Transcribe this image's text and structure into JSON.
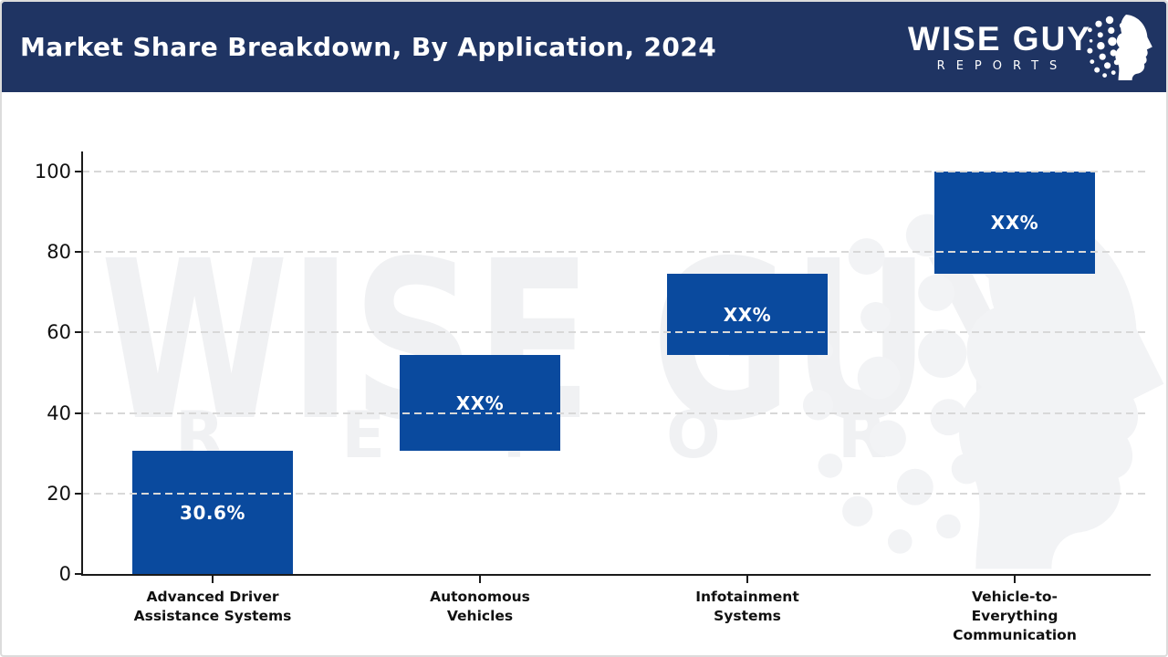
{
  "page": {
    "background": "#ffffff",
    "border_color": "#dcdcdc"
  },
  "header": {
    "bg_color": "#1f3463",
    "title": "Market Share Breakdown, By Application, 2024",
    "logo": {
      "brand_line1": "WISE GUY",
      "brand_line2": "REPORTS"
    }
  },
  "watermark": {
    "big_text": "WISE GUY",
    "small_text": "R E P O R T S",
    "color": "#f0f1f3"
  },
  "chart_data": {
    "type": "bar",
    "variant": "waterfall",
    "title": "Market Share Breakdown, By Application, 2024",
    "categories": [
      [
        "Advanced Driver",
        "Assistance Systems"
      ],
      [
        "Autonomous",
        "Vehicles"
      ],
      [
        "Infotainment",
        "Systems"
      ],
      [
        "Vehicle-to-",
        "Everything",
        "Communication"
      ]
    ],
    "segments": [
      {
        "category": "Advanced Driver Assistance Systems",
        "start": 0,
        "end": 30.6,
        "label": "30.6%"
      },
      {
        "category": "Autonomous Vehicles",
        "start": 30.6,
        "end": 54.4,
        "label": "XX%"
      },
      {
        "category": "Infotainment Systems",
        "start": 54.4,
        "end": 74.6,
        "label": "XX%"
      },
      {
        "category": "Vehicle-to-Everything Communication",
        "start": 74.6,
        "end": 100,
        "label": "XX%"
      }
    ],
    "xlabel": "",
    "ylabel": "",
    "ylim": [
      0,
      100
    ],
    "yticks": [
      0,
      20,
      40,
      60,
      80,
      100
    ],
    "grid": "horizontal dashed, drawn over bars",
    "legend": "none",
    "bar_color": "#0a4a9e",
    "bar_label_color": "#ffffff",
    "gridline_color": "#d8d8d8",
    "axis_color": "#1a1a1a"
  }
}
